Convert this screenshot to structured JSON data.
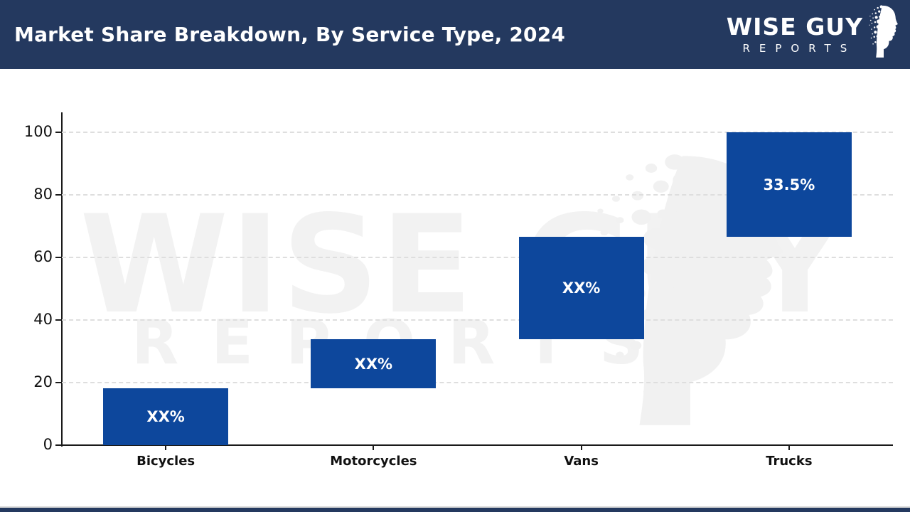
{
  "header": {
    "title": "Market Share Breakdown, By Service Type, 2024",
    "logo_primary": "WISE GUY",
    "logo_secondary": "REPORTS",
    "bg_color": "#24395f",
    "text_color": "#ffffff"
  },
  "watermark": {
    "primary": "WISE GUY",
    "secondary": "REPORTS",
    "color": "#f2f2f2"
  },
  "chart_data": {
    "type": "bar",
    "variant": "floating-waterfall",
    "title": "Market Share Breakdown, By Service Type, 2024",
    "categories": [
      "Bicycles",
      "Motorcycles",
      "Vans",
      "Trucks"
    ],
    "bars": [
      {
        "category": "Bicycles",
        "start": 0,
        "end": 18.2,
        "label": "XX%"
      },
      {
        "category": "Motorcycles",
        "start": 18.2,
        "end": 33.8,
        "label": "XX%"
      },
      {
        "category": "Vans",
        "start": 33.8,
        "end": 66.5,
        "label": "XX%"
      },
      {
        "category": "Trucks",
        "start": 66.5,
        "end": 100,
        "label": "33.5%"
      }
    ],
    "xlabel": "",
    "ylabel": "",
    "ylim": [
      0,
      100
    ],
    "yticks": [
      0,
      20,
      40,
      60,
      80,
      100
    ],
    "grid": "horizontal-dashed",
    "gridline_color": "#dedede",
    "axis_color": "#1a1a1a",
    "bar_color": "#0d479c",
    "bar_label_color": "#ffffff",
    "legend": null
  }
}
